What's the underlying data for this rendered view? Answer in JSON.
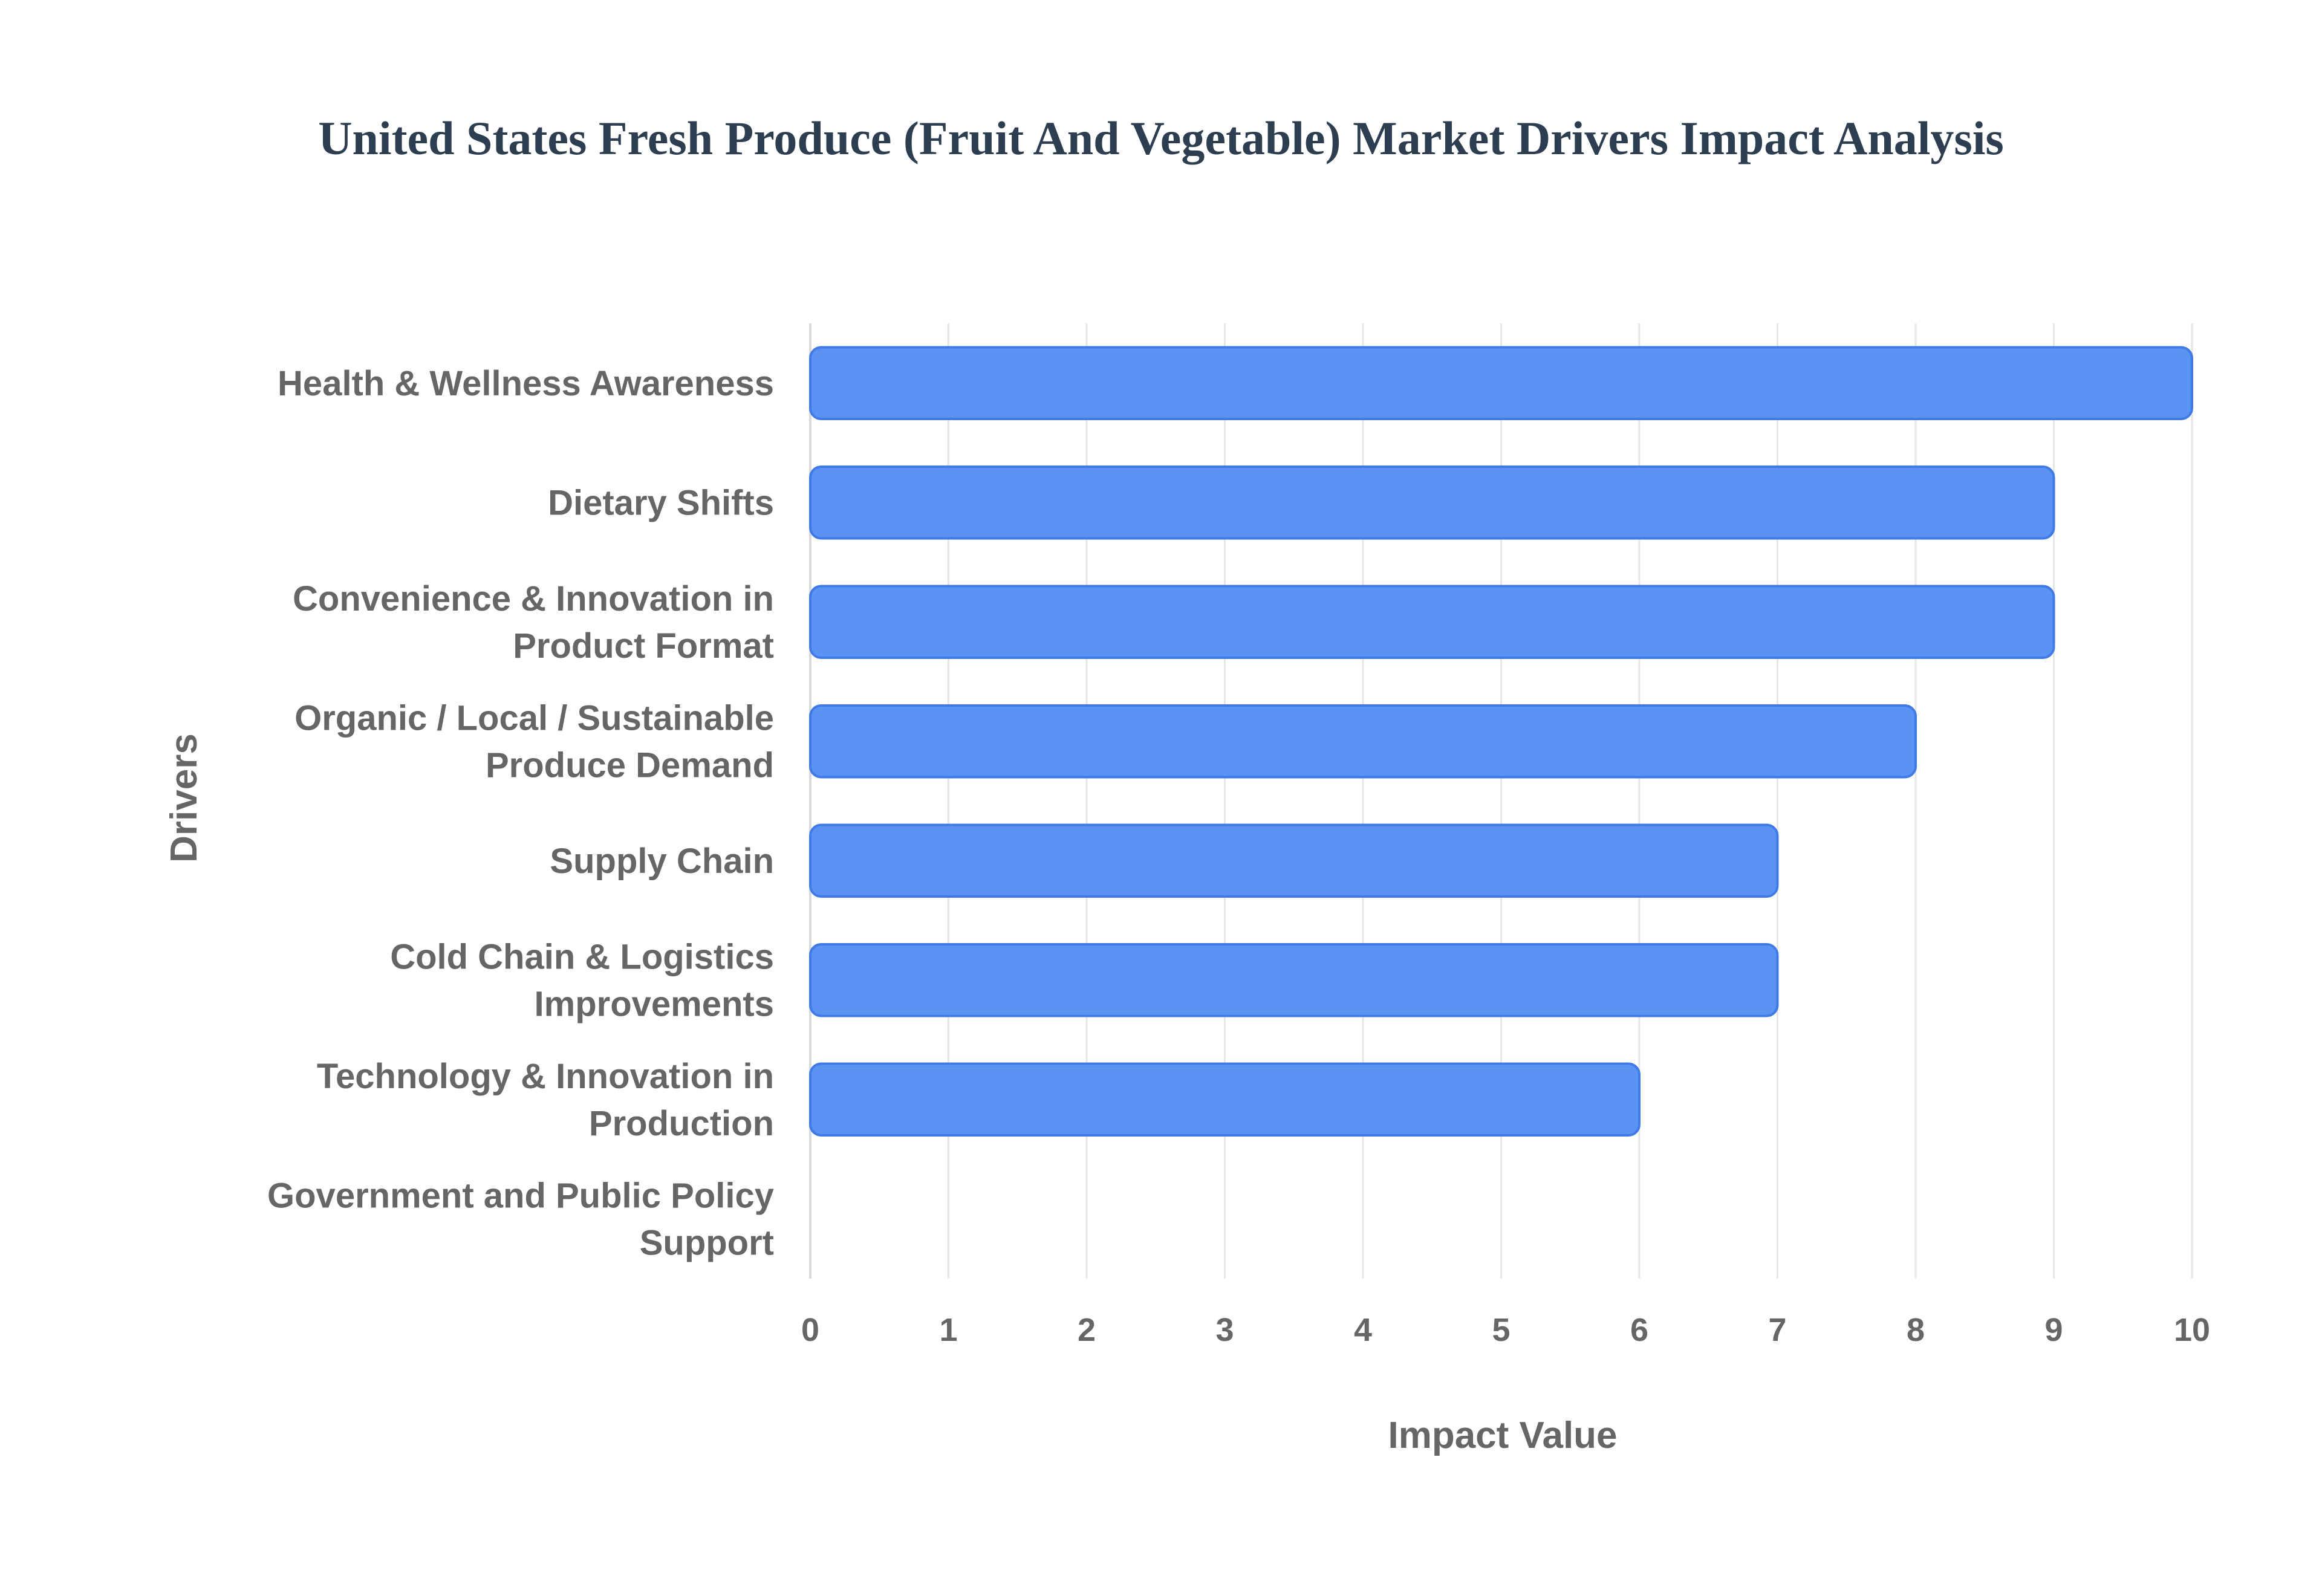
{
  "chart_data": {
    "type": "bar",
    "orientation": "horizontal",
    "title": "United States Fresh Produce (Fruit And Vegetable) Market Drivers Impact Analysis",
    "xlabel": "Impact Value",
    "ylabel": "Drivers",
    "categories": [
      [
        "Health & Wellness Awareness"
      ],
      [
        "Dietary Shifts"
      ],
      [
        "Convenience & Innovation in",
        "Product Format"
      ],
      [
        "Organic / Local / Sustainable",
        "Produce Demand"
      ],
      [
        "Supply Chain"
      ],
      [
        "Cold Chain & Logistics",
        "Improvements"
      ],
      [
        "Technology & Innovation in",
        "Production"
      ],
      [
        "Government and Public Policy",
        "Support"
      ]
    ],
    "values": [
      10,
      9,
      9,
      8,
      7,
      7,
      6,
      0
    ],
    "xlim": [
      0,
      10
    ],
    "xticks": [
      "0",
      "1",
      "2",
      "3",
      "4",
      "5",
      "6",
      "7",
      "8",
      "9",
      "10"
    ],
    "grid": true,
    "legend": "none",
    "colors": {
      "bar_fill": "#5b93f2",
      "bar_stroke": "#3f7ae6",
      "title": "#2c3e50",
      "text": "#666666"
    }
  }
}
